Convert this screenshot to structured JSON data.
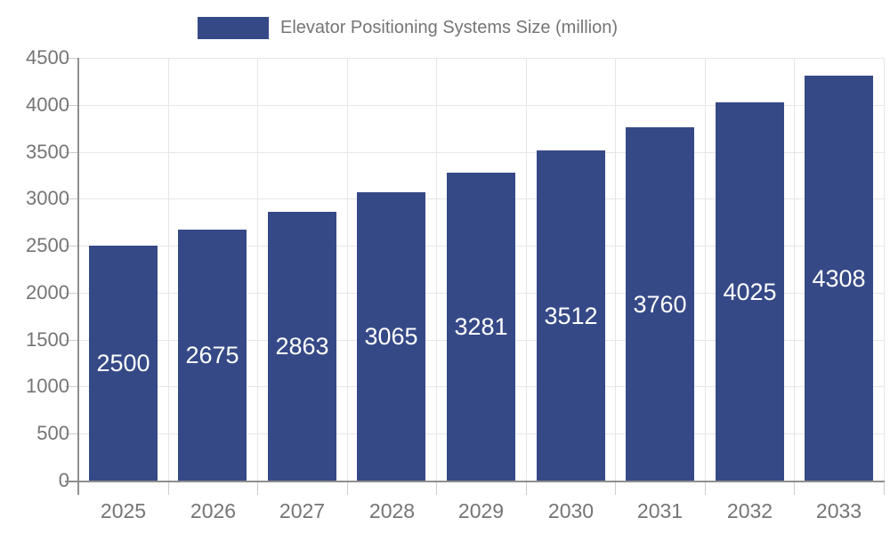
{
  "legend": {
    "label": "Elevator Positioning Systems Size (million)"
  },
  "chart_data": {
    "type": "bar",
    "title": "Elevator Positioning Systems Size (million)",
    "categories": [
      "2025",
      "2026",
      "2027",
      "2028",
      "2029",
      "2030",
      "2031",
      "2032",
      "2033"
    ],
    "values": [
      2500,
      2675,
      2863,
      3065,
      3281,
      3512,
      3760,
      4025,
      4308
    ],
    "series_name": "Elevator Positioning Systems Size (million)",
    "value_labels": [
      "2500",
      "2675",
      "2863",
      "3065",
      "3281",
      "3512",
      "3760",
      "4025",
      "4308"
    ],
    "ylim": [
      0,
      4500
    ],
    "yticks": [
      0,
      500,
      1000,
      1500,
      2000,
      2500,
      3000,
      3500,
      4000,
      4500
    ],
    "grid": true,
    "legend_position": "top-center",
    "colors": {
      "bar": "#364987",
      "grid": "#e6e6e6",
      "axis": "#8f8f8f",
      "tick": "#cccccc",
      "axis_text": "#757575",
      "value_label_text": "#ffffff",
      "background": "#ffffff"
    }
  }
}
